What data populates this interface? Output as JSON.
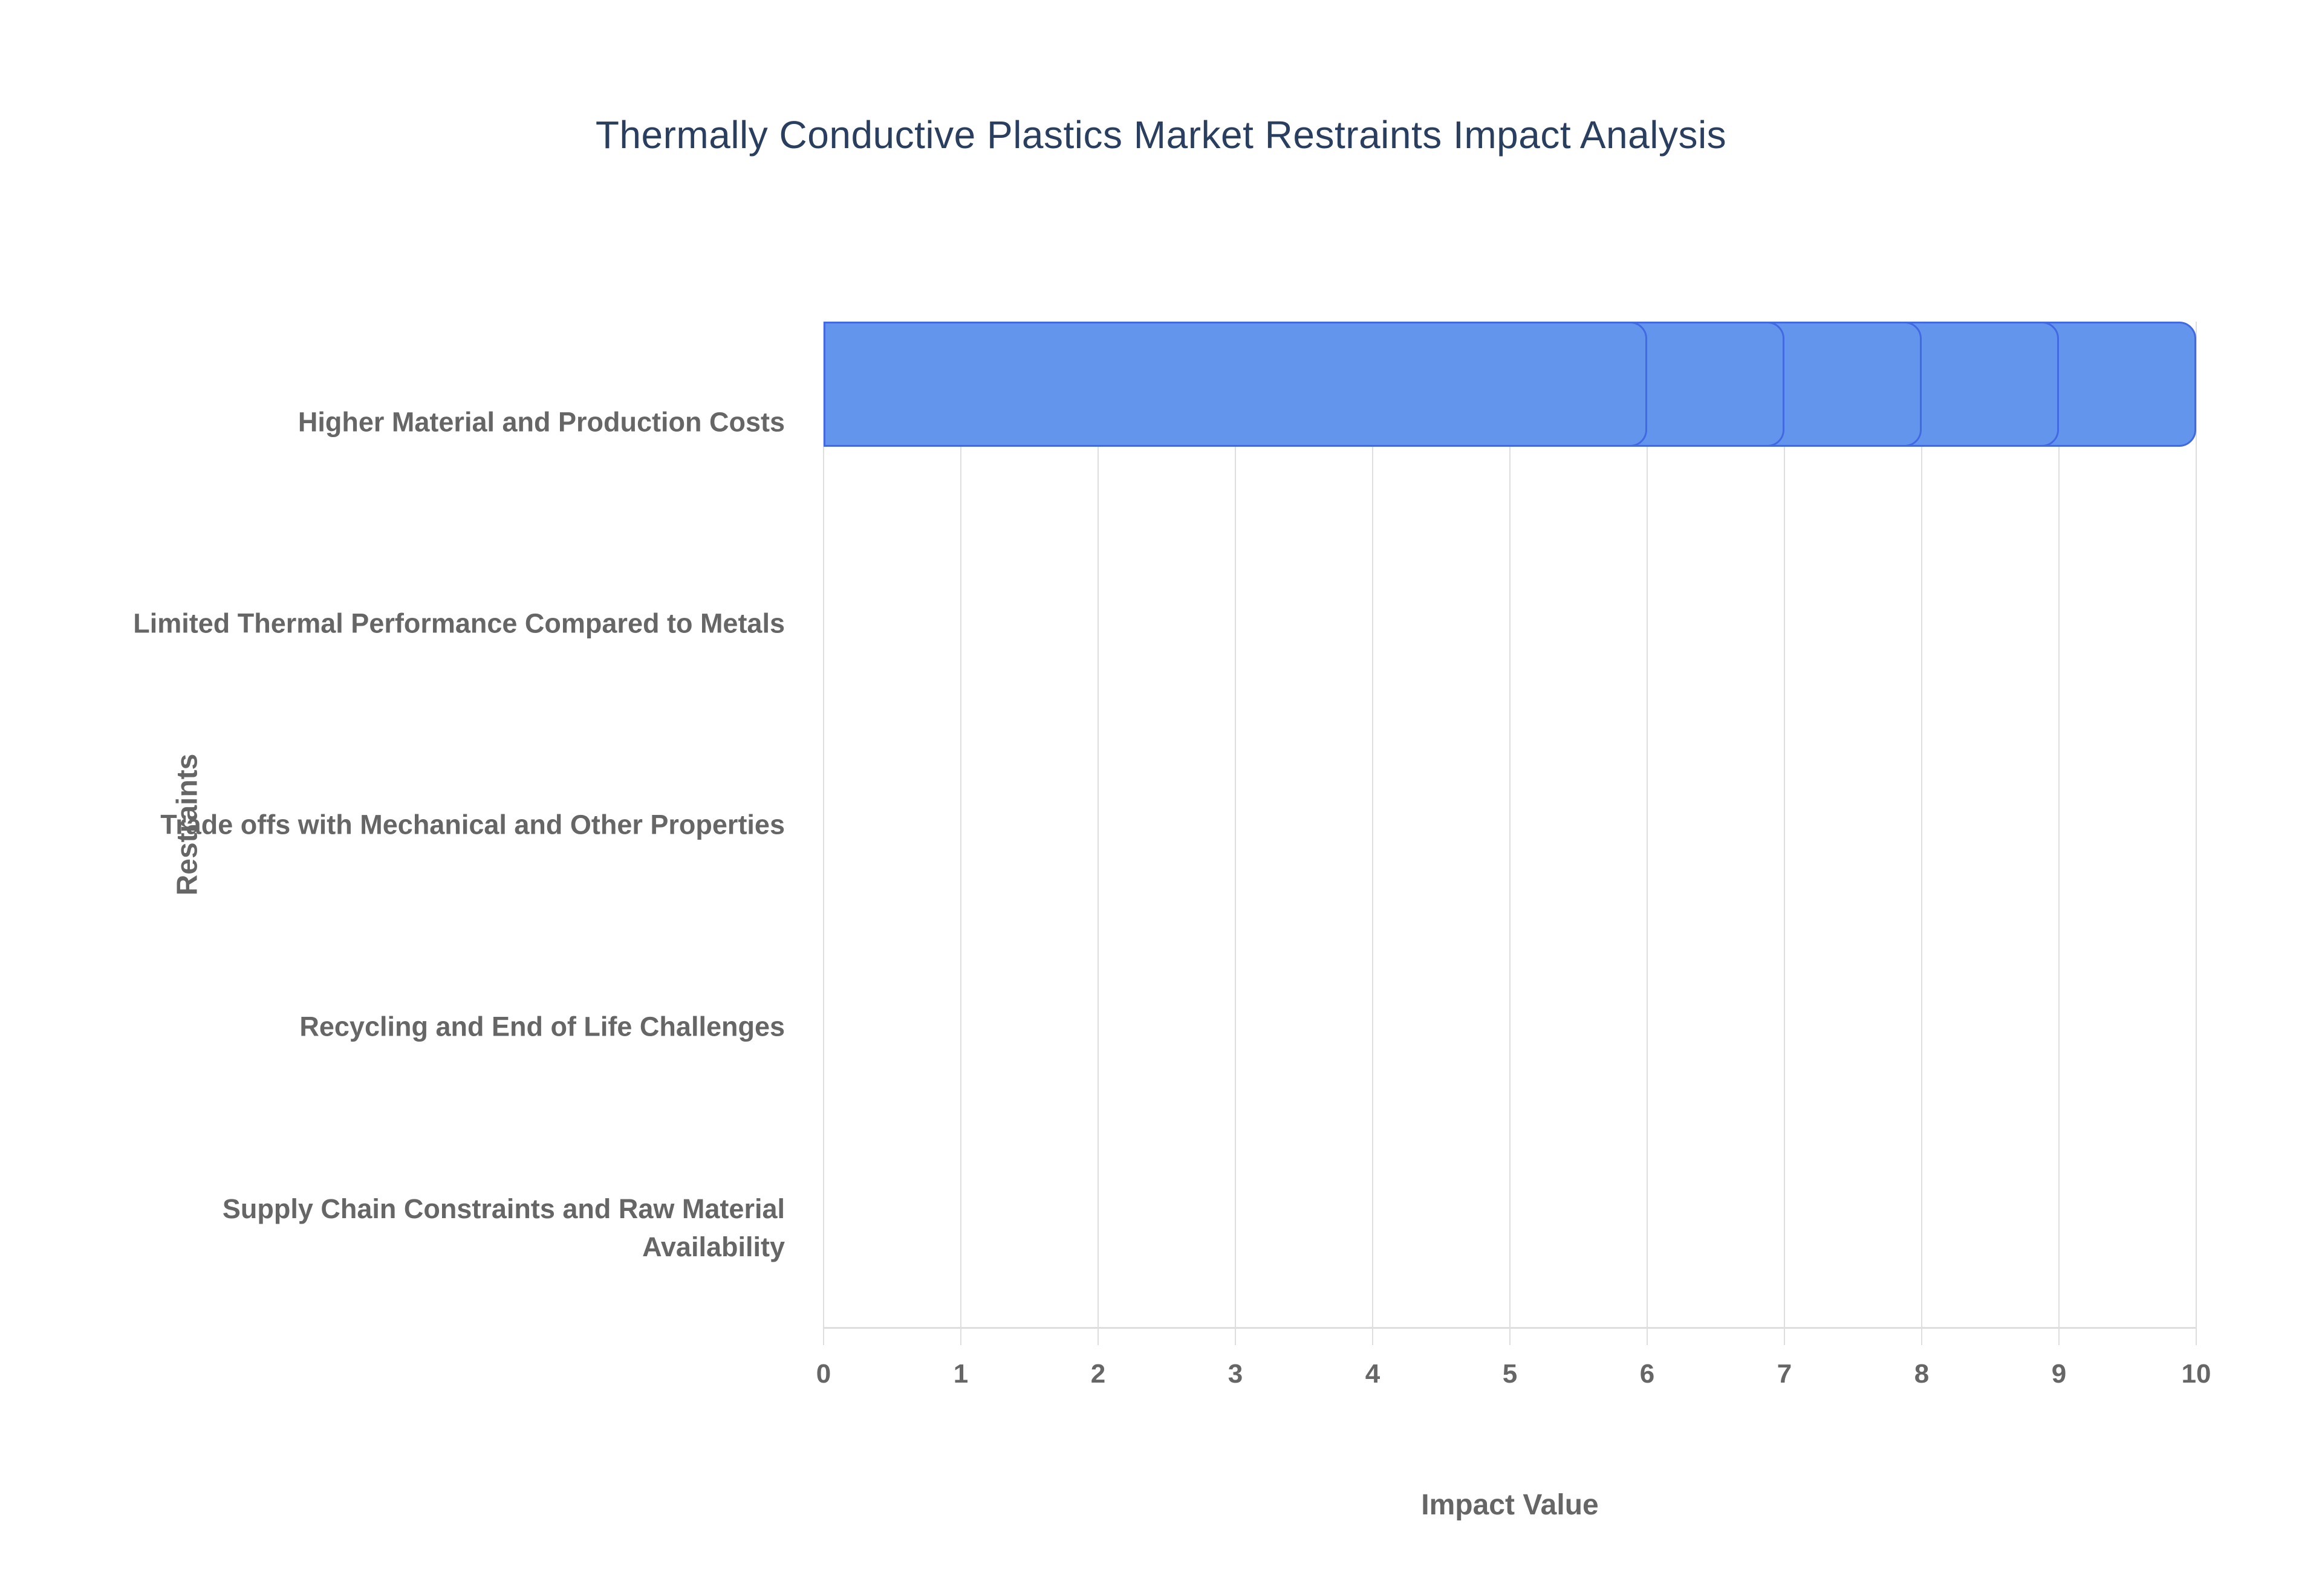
{
  "chart_data": {
    "type": "bar",
    "orientation": "horizontal",
    "title": "Thermally Conductive Plastics Market Restraints Impact Analysis",
    "xlabel": "Impact Value",
    "ylabel": "Restraints",
    "categories": [
      "Higher Material and Production Costs",
      "Limited Thermal Performance Compared to Metals",
      "Trade offs with Mechanical and Other Properties",
      "Recycling and End of Life Challenges",
      "Supply Chain Constraints and Raw Material Availability"
    ],
    "values": [
      10,
      9,
      8,
      7,
      6
    ],
    "xlim": [
      0,
      10
    ],
    "xticks": [
      0,
      1,
      2,
      3,
      4,
      5,
      6,
      7,
      8,
      9,
      10
    ],
    "grid": "vertical-only",
    "legend_position": "none",
    "colors": {
      "bar_fill": "#6495ED",
      "bar_border": "#4169E1",
      "title_text": "#2a3f5f",
      "axis_text": "#666666",
      "grid_line": "#dedede",
      "background": "#ffffff"
    }
  }
}
